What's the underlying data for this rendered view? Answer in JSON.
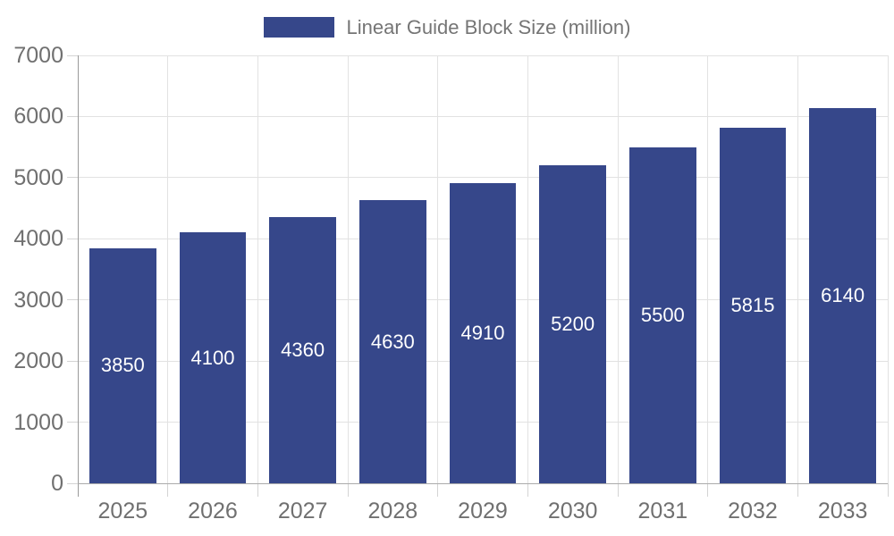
{
  "legend": {
    "label": "Linear Guide Block Size (million)"
  },
  "chart_data": {
    "type": "bar",
    "title": "",
    "categories": [
      "2025",
      "2026",
      "2027",
      "2028",
      "2029",
      "2030",
      "2031",
      "2032",
      "2033"
    ],
    "series": [
      {
        "name": "Linear Guide Block Size (million)",
        "values": [
          3850,
          4100,
          4360,
          4630,
          4910,
          5200,
          5500,
          5815,
          6140
        ]
      }
    ],
    "xlabel": "",
    "ylabel": "",
    "ylim": [
      0,
      7000
    ],
    "y_ticks": [
      0,
      1000,
      2000,
      3000,
      4000,
      5000,
      6000,
      7000
    ],
    "grid": true,
    "legend_position": "top",
    "value_labels": "inside-center",
    "colors": {
      "bar": "#36478A",
      "value_label": "#FFFFFF",
      "axis_text": "#707070",
      "grid_line": "#E2E2E2",
      "tick_line": "#D4D4D4",
      "y_axis_line": "#9A9A9A",
      "x_axis_line": "#ABABAB",
      "background": "#FFFFFF"
    }
  }
}
